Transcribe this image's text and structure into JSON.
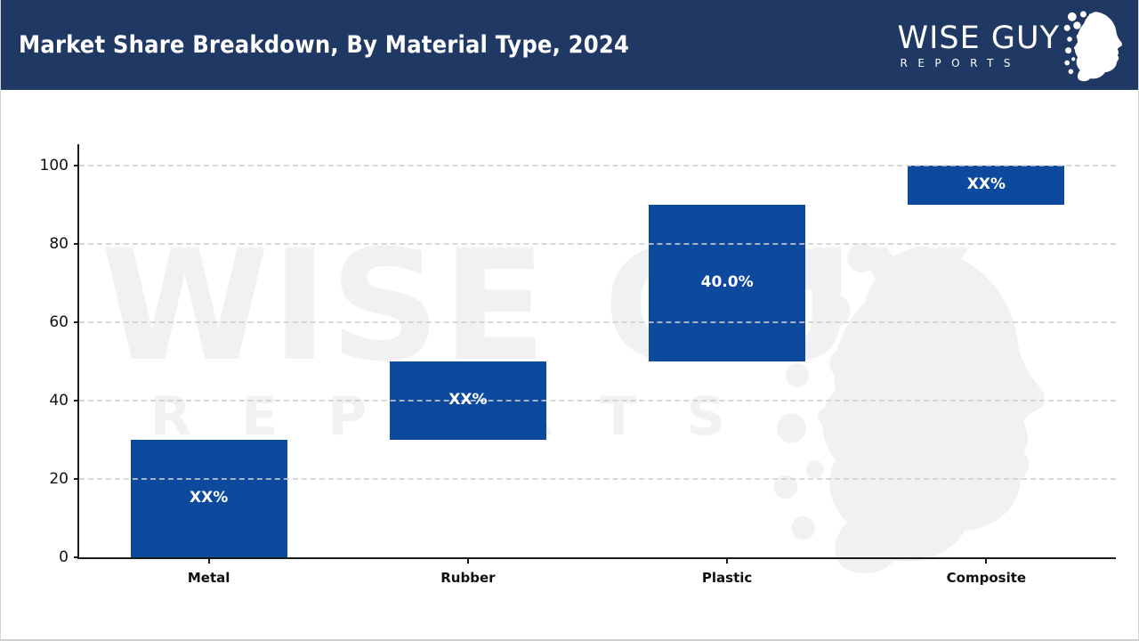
{
  "header": {
    "title": "Market Share Breakdown, By Material Type, 2024",
    "brand": {
      "name": "WISE GUY",
      "reports": "REPORTS"
    }
  },
  "watermark": {
    "name": "WISE GUY",
    "reports": "REPORTS"
  },
  "chart_data": {
    "type": "bar",
    "subtype": "waterfall",
    "title": "Market Share Breakdown, By Material Type, 2024",
    "categories": [
      "Metal",
      "Rubber",
      "Plastic",
      "Composite"
    ],
    "segments": [
      {
        "category": "Metal",
        "start": 0,
        "end": 30,
        "label": "XX%"
      },
      {
        "category": "Rubber",
        "start": 30,
        "end": 50,
        "label": "XX%"
      },
      {
        "category": "Plastic",
        "start": 50,
        "end": 90,
        "label": "40.0%"
      },
      {
        "category": "Composite",
        "start": 90,
        "end": 100,
        "label": "XX%"
      }
    ],
    "yticks": [
      0,
      20,
      40,
      60,
      80,
      100
    ],
    "ylim": [
      0,
      105
    ],
    "xlabel": "",
    "ylabel": "",
    "legend": null,
    "grid": true,
    "grid_style": "dashed"
  },
  "colors": {
    "header_bg": "#203864",
    "bar": "#0d4a9e",
    "value_label": "#ffffff",
    "grid": "#cecece",
    "axis": "#1a1a1a",
    "watermark": "#f1f1f4"
  }
}
